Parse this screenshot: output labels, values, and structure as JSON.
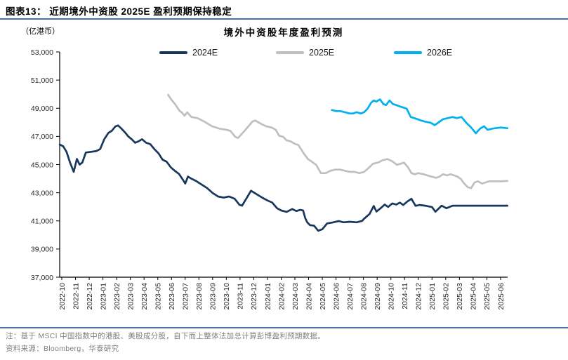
{
  "header": {
    "title": "图表13：  近期境外中资股 2025E 盈利预期保持稳定"
  },
  "footer": {
    "note": "注：基于 MSCI 中国指数中的港股、美股成分股，自下而上整体法加总计算彭博盈利预期数据。",
    "source": "资料来源：Bloomberg，华泰研究"
  },
  "colors": {
    "axis": "#000000",
    "tick_text": "#262626",
    "rule": "#4E6F9D",
    "note_text": "#7F7F7F",
    "series_2024E": "#17375D",
    "series_2025E": "#BFBFBF",
    "series_2026E": "#00B0F0"
  },
  "chart_data": {
    "type": "line",
    "title": "境外中资股年度盈利预测",
    "ylabel": "（亿港币）",
    "xlabel": "",
    "grid": false,
    "legend_position": "top",
    "ylim": [
      37000,
      53000
    ],
    "ytick_step": 2000,
    "ytick_labels": [
      "37,000",
      "39,000",
      "41,000",
      "43,000",
      "45,000",
      "47,000",
      "49,000",
      "51,000",
      "53,000"
    ],
    "x_categories": [
      "2022-10",
      "2022-11",
      "2022-12",
      "2023-01",
      "2023-02",
      "2023-03",
      "2023-04",
      "2023-05",
      "2023-06",
      "2023-07",
      "2023-08",
      "2023-09",
      "2023-10",
      "2023-11",
      "2023-12",
      "2024-01",
      "2024-02",
      "2024-03",
      "2024-04",
      "2024-05",
      "2024-06",
      "2024-07",
      "2024-08",
      "2024-09",
      "2024-10",
      "2024-11",
      "2024-12",
      "2025-01",
      "2025-02",
      "2025-03",
      "2025-04",
      "2025-05",
      "2025-06"
    ],
    "x_unit": "fractional month index, 0 = 2022-10",
    "series": [
      {
        "name": "2024E",
        "color": "#17375D",
        "points": [
          [
            -0.15,
            46420
          ],
          [
            0.1,
            46300
          ],
          [
            0.35,
            45900
          ],
          [
            0.6,
            45150
          ],
          [
            0.87,
            44480
          ],
          [
            1.1,
            45400
          ],
          [
            1.3,
            45000
          ],
          [
            1.5,
            45150
          ],
          [
            1.75,
            45850
          ],
          [
            2.1,
            45900
          ],
          [
            2.5,
            45950
          ],
          [
            2.8,
            46100
          ],
          [
            3.1,
            46800
          ],
          [
            3.4,
            47250
          ],
          [
            3.65,
            47400
          ],
          [
            3.9,
            47700
          ],
          [
            4.1,
            47780
          ],
          [
            4.35,
            47550
          ],
          [
            4.6,
            47300
          ],
          [
            4.85,
            47000
          ],
          [
            5.1,
            46800
          ],
          [
            5.35,
            46550
          ],
          [
            5.6,
            46650
          ],
          [
            5.85,
            46800
          ],
          [
            6.15,
            46550
          ],
          [
            6.45,
            46450
          ],
          [
            6.75,
            46100
          ],
          [
            7.05,
            45800
          ],
          [
            7.35,
            45350
          ],
          [
            7.65,
            45200
          ],
          [
            7.95,
            44800
          ],
          [
            8.25,
            44550
          ],
          [
            8.55,
            44330
          ],
          [
            8.85,
            43900
          ],
          [
            9.0,
            43650
          ],
          [
            9.2,
            44150
          ],
          [
            9.45,
            44000
          ],
          [
            9.8,
            43830
          ],
          [
            10.2,
            43580
          ],
          [
            10.6,
            43330
          ],
          [
            11.0,
            42980
          ],
          [
            11.4,
            42730
          ],
          [
            11.8,
            42650
          ],
          [
            12.2,
            42730
          ],
          [
            12.6,
            42580
          ],
          [
            12.95,
            42150
          ],
          [
            13.15,
            42080
          ],
          [
            13.5,
            42650
          ],
          [
            13.8,
            43140
          ],
          [
            14.2,
            42900
          ],
          [
            14.6,
            42660
          ],
          [
            15.0,
            42450
          ],
          [
            15.35,
            42300
          ],
          [
            15.7,
            41900
          ],
          [
            16.0,
            41740
          ],
          [
            16.4,
            41640
          ],
          [
            16.8,
            41840
          ],
          [
            17.1,
            41700
          ],
          [
            17.4,
            41780
          ],
          [
            17.6,
            41740
          ],
          [
            17.75,
            41200
          ],
          [
            17.9,
            40900
          ],
          [
            18.1,
            40700
          ],
          [
            18.4,
            40660
          ],
          [
            18.7,
            40300
          ],
          [
            19.0,
            40410
          ],
          [
            19.35,
            40820
          ],
          [
            19.8,
            40900
          ],
          [
            20.2,
            40990
          ],
          [
            20.55,
            40900
          ],
          [
            21.0,
            40940
          ],
          [
            21.5,
            40900
          ],
          [
            21.9,
            41000
          ],
          [
            22.05,
            41150
          ],
          [
            22.45,
            41490
          ],
          [
            22.75,
            42060
          ],
          [
            22.95,
            41660
          ],
          [
            23.25,
            41900
          ],
          [
            23.55,
            42160
          ],
          [
            23.8,
            41990
          ],
          [
            24.1,
            42240
          ],
          [
            24.4,
            42160
          ],
          [
            24.65,
            42300
          ],
          [
            24.9,
            42130
          ],
          [
            25.2,
            42380
          ],
          [
            25.5,
            42570
          ],
          [
            25.8,
            42070
          ],
          [
            26.1,
            42130
          ],
          [
            26.5,
            42080
          ],
          [
            27.0,
            41980
          ],
          [
            27.25,
            41650
          ],
          [
            27.7,
            42080
          ],
          [
            28.05,
            41900
          ],
          [
            28.5,
            42080
          ],
          [
            29.5,
            42080
          ],
          [
            30.5,
            42080
          ],
          [
            31.5,
            42080
          ],
          [
            32.5,
            42080
          ]
        ]
      },
      {
        "name": "2025E",
        "color": "#BFBFBF",
        "points": [
          [
            7.75,
            49960
          ],
          [
            8.0,
            49600
          ],
          [
            8.25,
            49310
          ],
          [
            8.6,
            48800
          ],
          [
            8.75,
            48710
          ],
          [
            8.95,
            48470
          ],
          [
            9.15,
            48710
          ],
          [
            9.45,
            48380
          ],
          [
            9.9,
            48300
          ],
          [
            10.4,
            48050
          ],
          [
            10.95,
            47720
          ],
          [
            11.5,
            47550
          ],
          [
            12.0,
            47470
          ],
          [
            12.3,
            47390
          ],
          [
            12.65,
            46970
          ],
          [
            12.85,
            46890
          ],
          [
            13.4,
            47470
          ],
          [
            13.9,
            48050
          ],
          [
            14.1,
            48130
          ],
          [
            14.55,
            47880
          ],
          [
            14.9,
            47720
          ],
          [
            15.3,
            47630
          ],
          [
            15.6,
            47470
          ],
          [
            15.85,
            47050
          ],
          [
            16.15,
            46970
          ],
          [
            16.4,
            46720
          ],
          [
            16.7,
            46640
          ],
          [
            17.0,
            46470
          ],
          [
            17.25,
            46390
          ],
          [
            17.7,
            45720
          ],
          [
            17.95,
            45390
          ],
          [
            18.2,
            45230
          ],
          [
            18.55,
            44980
          ],
          [
            18.9,
            44390
          ],
          [
            19.25,
            44390
          ],
          [
            19.6,
            44560
          ],
          [
            19.95,
            44640
          ],
          [
            20.3,
            44640
          ],
          [
            20.65,
            44560
          ],
          [
            21.0,
            44480
          ],
          [
            21.35,
            44480
          ],
          [
            21.7,
            44390
          ],
          [
            22.05,
            44480
          ],
          [
            22.35,
            44730
          ],
          [
            22.7,
            45060
          ],
          [
            23.05,
            45140
          ],
          [
            23.4,
            45310
          ],
          [
            23.75,
            45390
          ],
          [
            24.1,
            45230
          ],
          [
            24.45,
            44980
          ],
          [
            24.7,
            45060
          ],
          [
            24.95,
            45140
          ],
          [
            25.25,
            44810
          ],
          [
            25.5,
            44390
          ],
          [
            25.75,
            44310
          ],
          [
            26.0,
            44390
          ],
          [
            26.4,
            44310
          ],
          [
            26.65,
            44230
          ],
          [
            26.95,
            44150
          ],
          [
            27.3,
            44060
          ],
          [
            27.55,
            44150
          ],
          [
            27.8,
            44310
          ],
          [
            28.1,
            44230
          ],
          [
            28.35,
            44310
          ],
          [
            28.6,
            44230
          ],
          [
            28.85,
            44150
          ],
          [
            29.1,
            43980
          ],
          [
            29.35,
            43650
          ],
          [
            29.6,
            43400
          ],
          [
            29.85,
            43320
          ],
          [
            30.1,
            43730
          ],
          [
            30.35,
            43810
          ],
          [
            30.65,
            43650
          ],
          [
            30.9,
            43730
          ],
          [
            31.15,
            43810
          ],
          [
            32.0,
            43810
          ],
          [
            32.5,
            43840
          ]
        ]
      },
      {
        "name": "2026E",
        "color": "#00B0F0",
        "points": [
          [
            19.7,
            48880
          ],
          [
            20.0,
            48800
          ],
          [
            20.3,
            48800
          ],
          [
            20.65,
            48720
          ],
          [
            21.0,
            48630
          ],
          [
            21.25,
            48630
          ],
          [
            21.5,
            48720
          ],
          [
            21.8,
            48630
          ],
          [
            22.05,
            48720
          ],
          [
            22.3,
            48970
          ],
          [
            22.55,
            49380
          ],
          [
            22.75,
            49550
          ],
          [
            22.95,
            49470
          ],
          [
            23.2,
            49630
          ],
          [
            23.45,
            49300
          ],
          [
            23.65,
            49220
          ],
          [
            23.9,
            49550
          ],
          [
            24.15,
            49300
          ],
          [
            24.4,
            49220
          ],
          [
            24.65,
            49130
          ],
          [
            24.9,
            49050
          ],
          [
            25.15,
            48970
          ],
          [
            25.45,
            48380
          ],
          [
            25.7,
            48300
          ],
          [
            25.95,
            48220
          ],
          [
            26.2,
            48130
          ],
          [
            26.5,
            48050
          ],
          [
            26.9,
            47970
          ],
          [
            27.2,
            47800
          ],
          [
            27.45,
            47970
          ],
          [
            27.8,
            48220
          ],
          [
            28.15,
            48300
          ],
          [
            28.5,
            48380
          ],
          [
            28.8,
            48300
          ],
          [
            29.15,
            48380
          ],
          [
            29.5,
            47970
          ],
          [
            29.85,
            47630
          ],
          [
            30.2,
            47220
          ],
          [
            30.5,
            47550
          ],
          [
            30.8,
            47720
          ],
          [
            31.05,
            47470
          ],
          [
            31.4,
            47550
          ],
          [
            32.0,
            47630
          ],
          [
            32.5,
            47580
          ]
        ]
      }
    ]
  }
}
